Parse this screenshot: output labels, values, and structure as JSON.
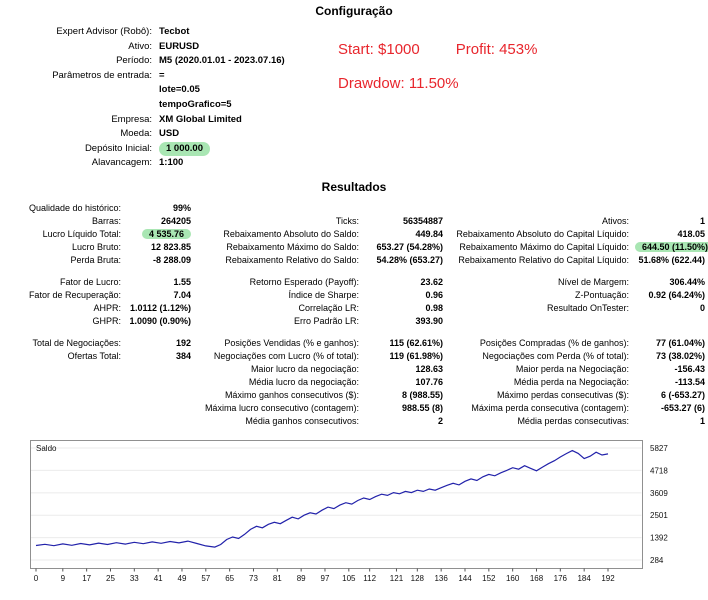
{
  "page": {
    "title": "Configuração",
    "results_title": "Resultados"
  },
  "config": {
    "rows": [
      {
        "label": "Expert Advisor (Robô):",
        "value": "Tecbot"
      },
      {
        "label": "Ativo:",
        "value": "EURUSD"
      },
      {
        "label": "Período:",
        "value": "M5 (2020.01.01 - 2023.07.16)"
      },
      {
        "label": "Parâmetros de entrada:",
        "value": "="
      },
      {
        "label": "",
        "value": "lote=0.05"
      },
      {
        "label": "",
        "value": "tempoGrafico=5"
      },
      {
        "label": "Empresa:",
        "value": "XM Global Limited"
      },
      {
        "label": "Moeda:",
        "value": "USD"
      },
      {
        "label": "Depósito Inicial:",
        "value": "1 000.00"
      },
      {
        "label": "Alavancagem:",
        "value": "1:100"
      }
    ]
  },
  "annotations": {
    "start_text": "Start: $1000",
    "profit_text": "Profit: 453%",
    "drawdown_text": "Drawdow: 11.50%",
    "color": "#e8262d"
  },
  "results": {
    "rows": [
      {
        "l1": "Qualidade do histórico:",
        "v1": "99%",
        "l2": "",
        "v2": "",
        "l3": "",
        "v3": ""
      },
      {
        "l1": "Barras:",
        "v1": "264205",
        "l2": "Ticks:",
        "v2": "56354887",
        "l3": "Ativos:",
        "v3": "1"
      },
      {
        "l1": "Lucro Líquido Total:",
        "v1": "4 535.76",
        "l2": "Rebaixamento Absoluto do Saldo:",
        "v2": "449.84",
        "l3": "Rebaixamento Absoluto do Capital Líquido:",
        "v3": "418.05"
      },
      {
        "l1": "Lucro Bruto:",
        "v1": "12 823.85",
        "l2": "Rebaixamento Máximo do Saldo:",
        "v2": "653.27 (54.28%)",
        "l3": "Rebaixamento Máximo do Capital Líquido:",
        "v3": "644.50 (11.50%)"
      },
      {
        "l1": "Perda Bruta:",
        "v1": "-8 288.09",
        "l2": "Rebaixamento Relativo do Saldo:",
        "v2": "54.28% (653.27)",
        "l3": "Rebaixamento Relativo do Capital Líquido:",
        "v3": "51.68% (622.44)"
      },
      {
        "l1": "Fator de Lucro:",
        "v1": "1.55",
        "l2": "Retorno Esperado (Payoff):",
        "v2": "23.62",
        "l3": "Nível de Margem:",
        "v3": "306.44%"
      },
      {
        "l1": "Fator de Recuperação:",
        "v1": "7.04",
        "l2": "Índice de Sharpe:",
        "v2": "0.96",
        "l3": "Z-Pontuação:",
        "v3": "0.92 (64.24%)"
      },
      {
        "l1": "AHPR:",
        "v1": "1.0112 (1.12%)",
        "l2": "Correlação LR:",
        "v2": "0.98",
        "l3": "Resultado OnTester:",
        "v3": "0"
      },
      {
        "l1": "GHPR:",
        "v1": "1.0090 (0.90%)",
        "l2": "Erro Padrão LR:",
        "v2": "393.90",
        "l3": "",
        "v3": ""
      },
      {
        "l1": "Total de Negociações:",
        "v1": "192",
        "l2": "Posições Vendidas (% e ganhos):",
        "v2": "115 (62.61%)",
        "l3": "Posições Compradas (% de ganhos):",
        "v3": "77 (61.04%)"
      },
      {
        "l1": "Ofertas Total:",
        "v1": "384",
        "l2": "Negociações com Lucro (% of total):",
        "v2": "119 (61.98%)",
        "l3": "Negociações com Perda (% of total):",
        "v3": "73 (38.02%)"
      },
      {
        "l1": "",
        "v1": "",
        "l2": "Maior lucro da negociação:",
        "v2": "128.63",
        "l3": "Maior perda na Negociação:",
        "v3": "-156.43"
      },
      {
        "l1": "",
        "v1": "",
        "l2": "Média lucro da negociação:",
        "v2": "107.76",
        "l3": "Média perda na Negociação:",
        "v3": "-113.54"
      },
      {
        "l1": "",
        "v1": "",
        "l2": "Máximo ganhos consecutivos ($):",
        "v2": "8 (988.55)",
        "l3": "Máximo perdas consecutivas ($):",
        "v3": "6 (-653.27)"
      },
      {
        "l1": "",
        "v1": "",
        "l2": "Máxima lucro consecutivo (contagem):",
        "v2": "988.55 (8)",
        "l3": "Máxima perda consecutiva (contagem):",
        "v3": "-653.27 (6)"
      },
      {
        "l1": "",
        "v1": "",
        "l2": "Média ganhos consecutivos:",
        "v2": "2",
        "l3": "Média perdas consecutivas:",
        "v3": "1"
      }
    ]
  },
  "chart_data": {
    "type": "line",
    "title": "Saldo",
    "xlabel": "",
    "ylabel": "",
    "xlim": [
      0,
      192
    ],
    "ylim": [
      284,
      5827
    ],
    "x_ticks": [
      0,
      9,
      17,
      25,
      33,
      41,
      49,
      57,
      65,
      73,
      81,
      89,
      97,
      105,
      112,
      121,
      128,
      136,
      144,
      152,
      160,
      168,
      176,
      184,
      192
    ],
    "y_ticks": [
      284,
      1392,
      2501,
      3609,
      4718,
      5827
    ],
    "grid": true,
    "legend_position": "none",
    "line_color": "#2222aa",
    "series": [
      {
        "name": "Saldo",
        "x": [
          0,
          3,
          6,
          9,
          12,
          15,
          18,
          21,
          24,
          27,
          30,
          33,
          36,
          39,
          42,
          45,
          48,
          51,
          54,
          57,
          60,
          62,
          64,
          66,
          68,
          70,
          72,
          74,
          76,
          78,
          80,
          82,
          84,
          86,
          88,
          90,
          92,
          94,
          96,
          98,
          100,
          102,
          104,
          106,
          108,
          110,
          112,
          114,
          116,
          118,
          120,
          122,
          124,
          126,
          128,
          130,
          132,
          134,
          136,
          138,
          140,
          142,
          144,
          146,
          148,
          150,
          152,
          154,
          156,
          158,
          160,
          162,
          164,
          166,
          168,
          170,
          172,
          174,
          176,
          178,
          180,
          182,
          184,
          186,
          188,
          190,
          192
        ],
        "y": [
          1000,
          1060,
          990,
          1080,
          1010,
          1100,
          1030,
          1120,
          1050,
          1140,
          1070,
          1160,
          1090,
          1180,
          1110,
          1200,
          1130,
          1220,
          1100,
          980,
          920,
          1050,
          1300,
          1420,
          1350,
          1550,
          1800,
          1950,
          1880,
          2050,
          2150,
          2080,
          2250,
          2400,
          2320,
          2500,
          2620,
          2560,
          2750,
          2900,
          2830,
          3000,
          3120,
          3050,
          3230,
          3350,
          3280,
          3420,
          3540,
          3480,
          3620,
          3560,
          3680,
          3620,
          3740,
          3680,
          3800,
          3740,
          3860,
          3980,
          4080,
          4000,
          4180,
          4300,
          4220,
          4400,
          4520,
          4450,
          4600,
          4720,
          4850,
          4780,
          4950,
          4820,
          4700,
          4880,
          5050,
          5200,
          5380,
          5550,
          5700,
          5560,
          5300,
          5420,
          5620,
          5480,
          5536
        ]
      }
    ]
  }
}
